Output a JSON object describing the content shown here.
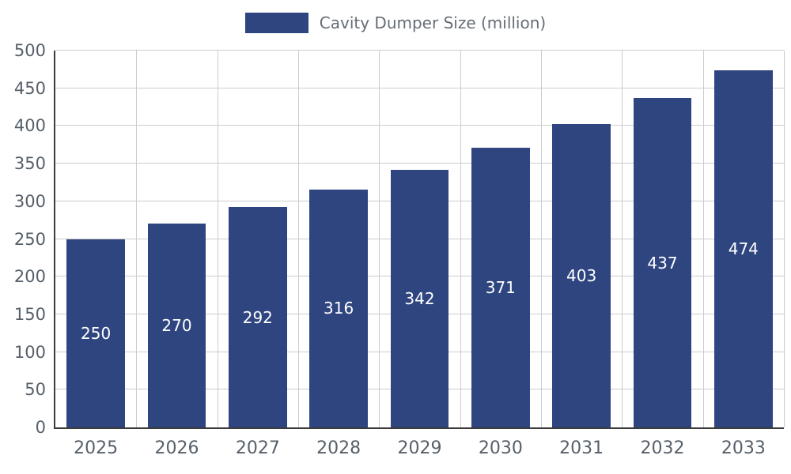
{
  "chart_data": {
    "type": "bar",
    "title": "Cavity Dumper Size (million)",
    "legend_label": "Cavity Dumper Size (million)",
    "legend_position": "top",
    "categories": [
      "2025",
      "2026",
      "2027",
      "2028",
      "2029",
      "2030",
      "2031",
      "2032",
      "2033"
    ],
    "values": [
      250,
      270,
      292,
      316,
      342,
      371,
      403,
      437,
      474
    ],
    "xlabel": "",
    "ylabel": "",
    "ylim": [
      0,
      500
    ],
    "ytick_step": 50,
    "ytick_labels": [
      "0",
      "50",
      "100",
      "150",
      "200",
      "250",
      "300",
      "350",
      "400",
      "450",
      "500"
    ],
    "grid": true,
    "bar_color": "#2f4580",
    "value_label_color": "#ffffff",
    "axis_label_color": "#57606a"
  }
}
